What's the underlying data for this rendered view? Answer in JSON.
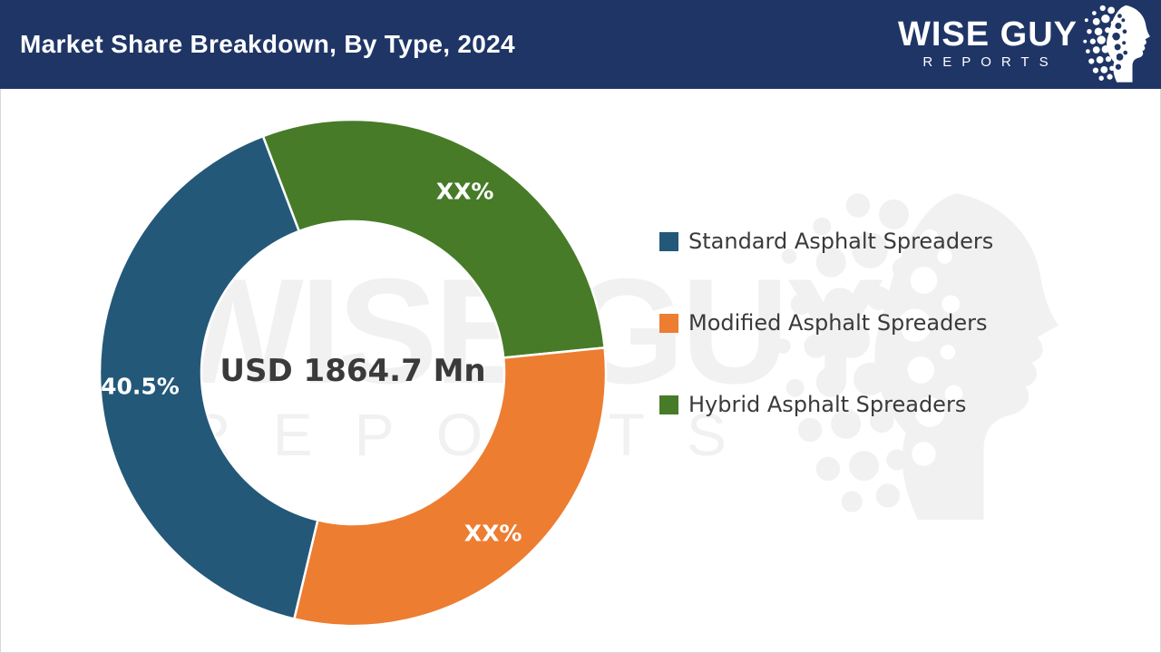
{
  "header": {
    "title": "Market Share Breakdown, By Type, 2024",
    "logo": {
      "line1": "WISE GUY",
      "line2": "REPORTS"
    }
  },
  "watermark": {
    "line1": "WISE GUY",
    "line2": "REPORTS"
  },
  "colors": {
    "header-bg": "#1F3566",
    "text-dark": "#3A3A3A",
    "text-light": "#FFFFFF",
    "watermark": "#F1F1F1",
    "border": "#D8D8D8",
    "standard-blue": "#235879",
    "modified-orange": "#ED7D31",
    "hybrid-green": "#477B28"
  },
  "chart_data": {
    "type": "pie",
    "subtype": "donut",
    "title": "Market Share Breakdown, By Type, 2024",
    "center_label": "USD 1864.7 Mn",
    "units": "percent share of market",
    "start_angle_deg": -20.8,
    "direction": "clockwise",
    "segments": [
      {
        "name": "Hybrid Asphalt Spreaders",
        "value": 29.2,
        "display_label": "XX%",
        "color": "#477B28"
      },
      {
        "name": "Modified Asphalt Spreaders",
        "value": 30.3,
        "display_label": "XX%",
        "color": "#ED7D31"
      },
      {
        "name": "Standard Asphalt Spreaders",
        "value": 40.5,
        "display_label": "40.5%",
        "color": "#235879"
      }
    ],
    "legend": [
      {
        "label": "Standard Asphalt Spreaders",
        "color": "#235879"
      },
      {
        "label": "Modified Asphalt Spreaders",
        "color": "#ED7D31"
      },
      {
        "label": "Hybrid Asphalt Spreaders",
        "color": "#477B28"
      }
    ],
    "legend_position": "right"
  }
}
